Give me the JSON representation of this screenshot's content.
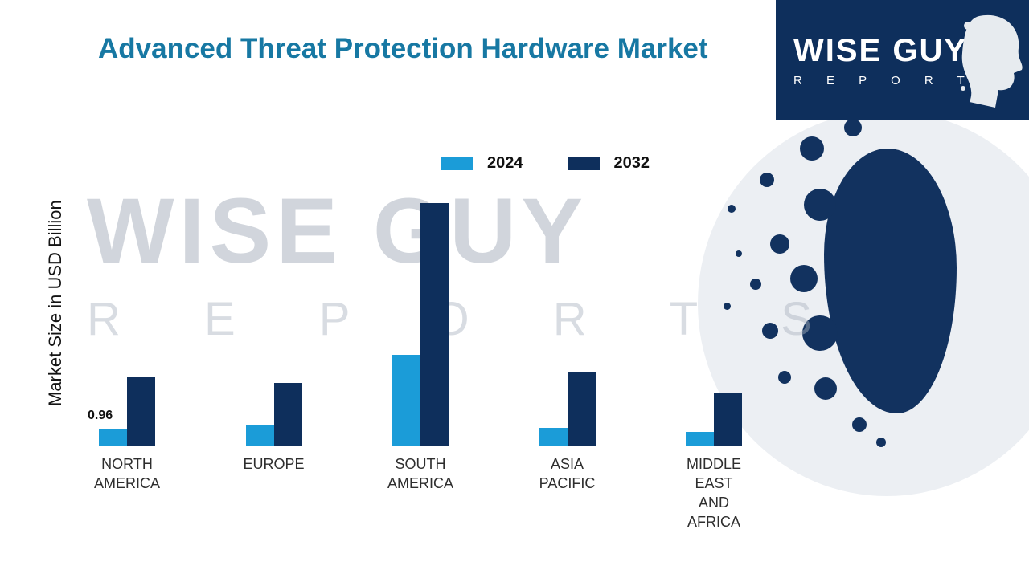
{
  "header": {
    "title": "Advanced Threat Protection Hardware Market"
  },
  "logo": {
    "name_line": "WISE GUY",
    "sub_line": "R E P O R T S"
  },
  "watermark": {
    "name_line": "WISE GUY",
    "sub_line": "R E P O R T S"
  },
  "legend": [
    {
      "label": "2024",
      "color": "#1b9cd8"
    },
    {
      "label": "2032",
      "color": "#0e2f5c"
    }
  ],
  "chart_data": {
    "type": "bar",
    "title": "Advanced Threat Protection Hardware Market",
    "ylabel": "Market Size in USD Billion",
    "xlabel": "",
    "categories": [
      "NORTH AMERICA",
      "EUROPE",
      "SOUTH AMERICA",
      "ASIA PACIFIC",
      "MIDDLE EAST AND AFRICA"
    ],
    "category_label_lines": [
      [
        "NORTH",
        "AMERICA"
      ],
      [
        "EUROPE"
      ],
      [
        "SOUTH",
        "AMERICA"
      ],
      [
        "ASIA",
        "PACIFIC"
      ],
      [
        "MIDDLE",
        "EAST",
        "AND",
        "AFRICA"
      ]
    ],
    "series": [
      {
        "name": "2024",
        "color": "#1b9cd8",
        "values": [
          0.96,
          1.2,
          5.4,
          1.05,
          0.8
        ]
      },
      {
        "name": "2032",
        "color": "#0e2f5c",
        "values": [
          4.1,
          3.7,
          14.4,
          4.4,
          3.1
        ]
      }
    ],
    "annotations": [
      {
        "series": "2024",
        "category_index": 0,
        "text": "0.96"
      }
    ],
    "ylim": [
      0,
      15
    ],
    "grid": false,
    "legend_position": "top"
  },
  "colors": {
    "title": "#1778a3",
    "series_2024": "#1b9cd8",
    "series_2032": "#0e2f5c",
    "watermark": "#9aa4b2",
    "logo_background": "#0e2f5c"
  }
}
